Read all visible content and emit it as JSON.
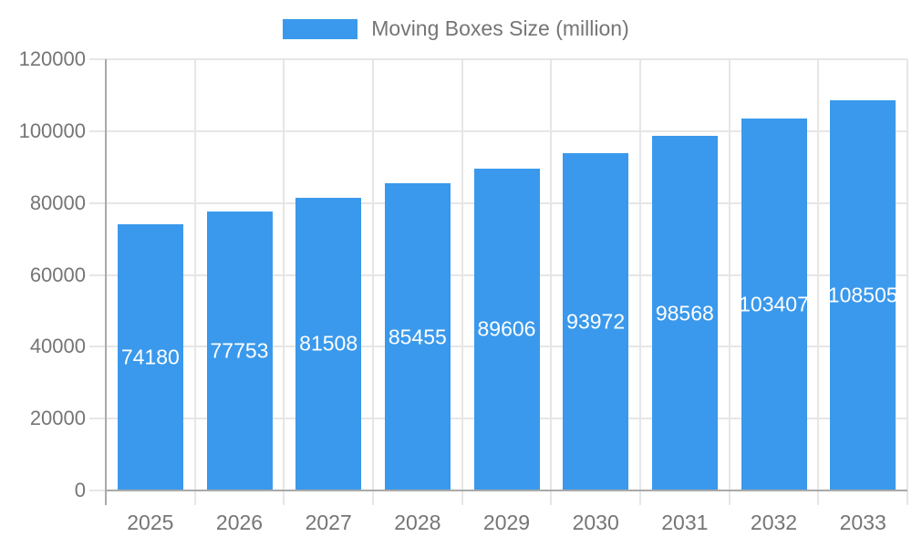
{
  "chart_data": {
    "type": "bar",
    "title": "",
    "legend": {
      "position": "top",
      "entries": [
        "Moving Boxes Size (million)"
      ]
    },
    "series_name": "Moving Boxes Size (million)",
    "categories": [
      "2025",
      "2026",
      "2027",
      "2028",
      "2029",
      "2030",
      "2031",
      "2032",
      "2033"
    ],
    "values": [
      74180,
      77753,
      81508,
      85455,
      89606,
      93972,
      98568,
      103407,
      108505
    ],
    "value_labels_shown": true,
    "xlabel": "",
    "ylabel": "",
    "ylim": [
      0,
      120000
    ],
    "yticks": [
      0,
      20000,
      40000,
      60000,
      80000,
      100000,
      120000
    ],
    "ytick_labels": [
      "0",
      "20000",
      "40000",
      "60000",
      "80000",
      "100000",
      "120000"
    ],
    "grid": true,
    "colors": {
      "bar": "#3a99ec",
      "value_label_text": "#ffffff",
      "axis_text": "#757575",
      "gridline": "#e6e6e6",
      "axis_line": "#a9a9a9",
      "background": "#ffffff"
    }
  }
}
